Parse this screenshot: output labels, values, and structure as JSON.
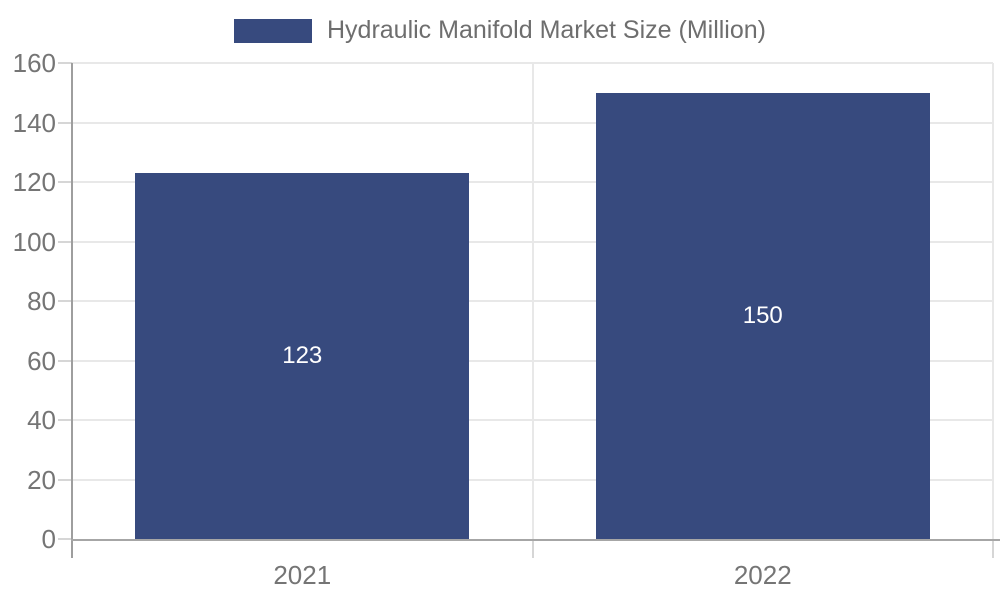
{
  "chart_data": {
    "type": "bar",
    "title": "",
    "xlabel": "",
    "ylabel": "",
    "categories": [
      "2021",
      "2022"
    ],
    "series": [
      {
        "name": "Hydraulic Manifold Market Size (Million)",
        "values": [
          123,
          150
        ]
      }
    ],
    "value_labels": [
      "123",
      "150"
    ],
    "ylim": [
      0,
      160
    ],
    "ytick_step": 20,
    "yticks": [
      0,
      20,
      40,
      60,
      80,
      100,
      120,
      140,
      160
    ],
    "grid": true,
    "legend_position": "top-center",
    "colors": {
      "bar_fill": "#374A7E",
      "value_label_text": "#ffffff",
      "gridline": "#e8e8e8",
      "tick": "#d6d6d6",
      "axis_line": "#9e9e9e",
      "baseline": "#a6a6a6",
      "tick_label_text": "#757575",
      "legend_text": "#6e6e6e",
      "background": "#ffffff"
    }
  }
}
